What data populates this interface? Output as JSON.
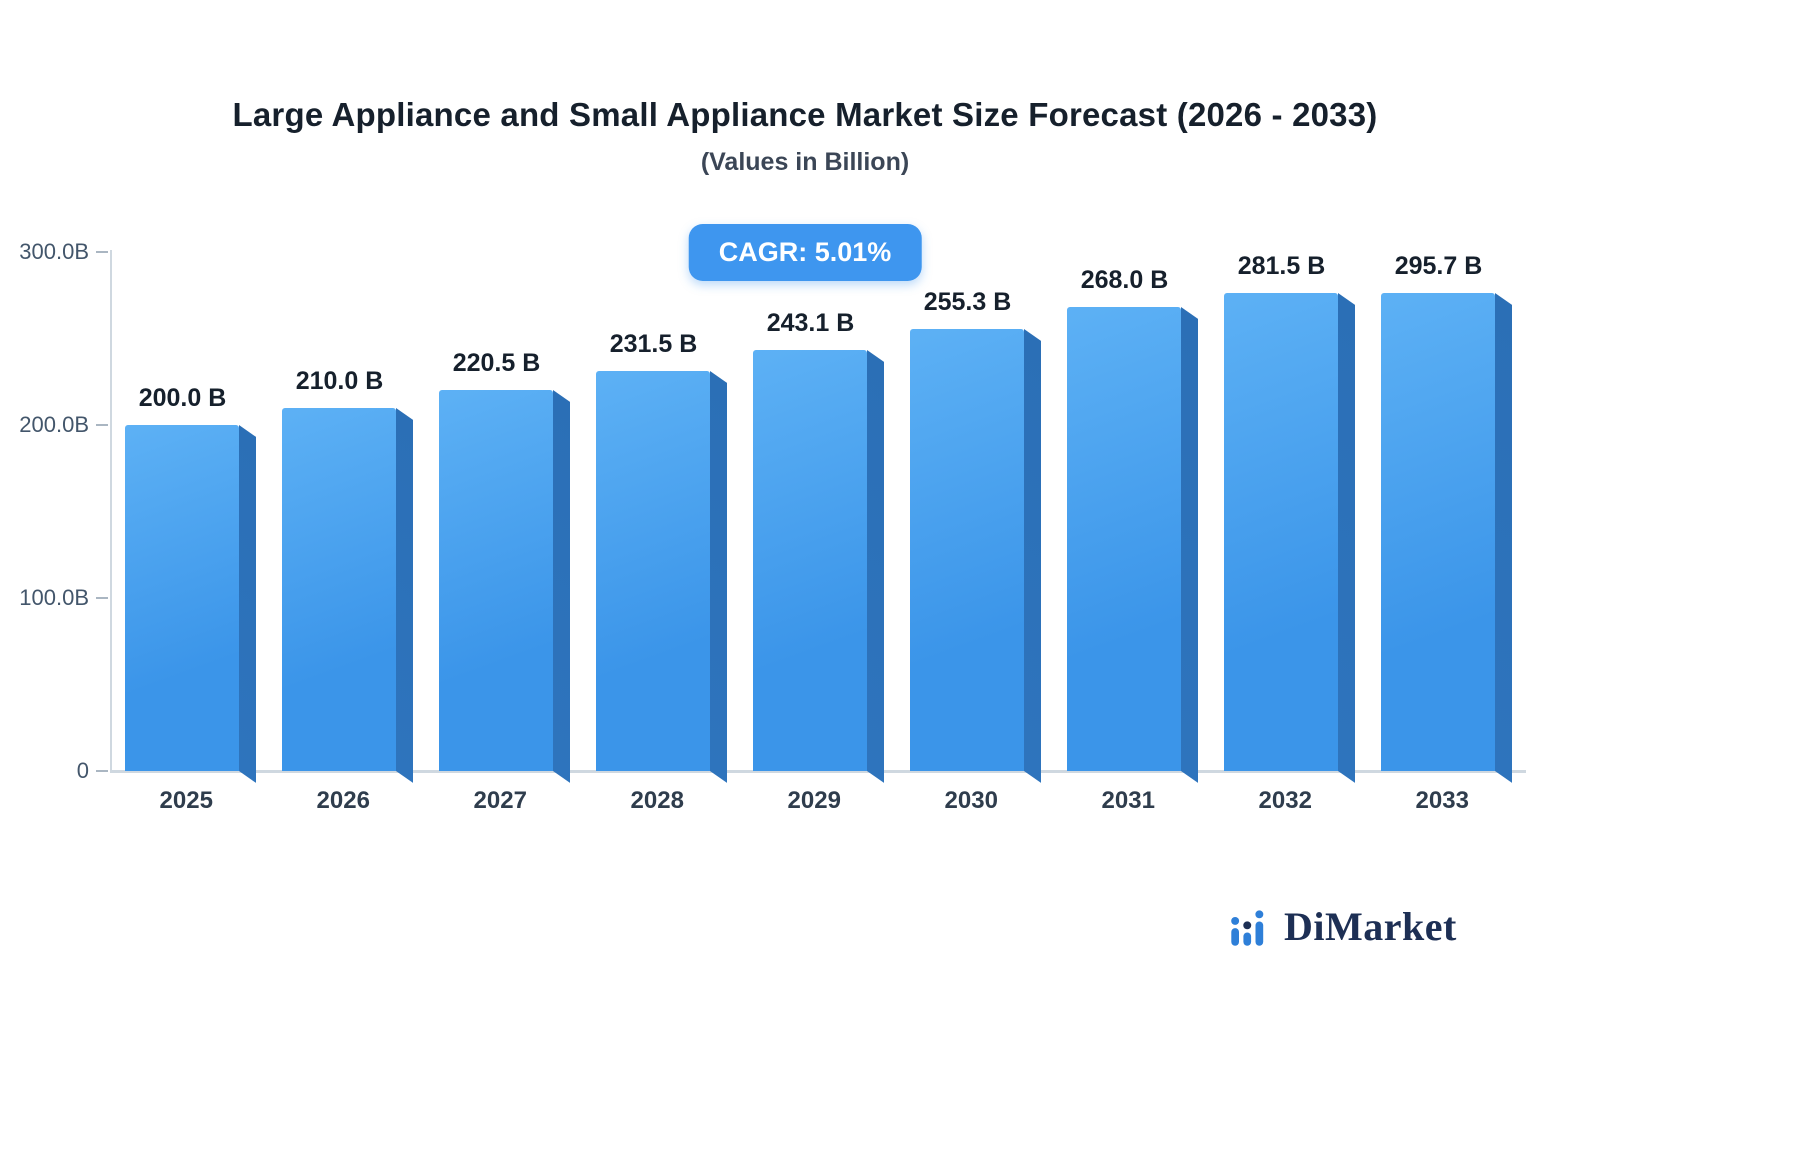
{
  "header": {
    "title": "Large Appliance and Small Appliance Market Size Forecast (2026 - 2033)",
    "subtitle": "(Values in Billion)"
  },
  "badge": {
    "label": "CAGR: 5.01%"
  },
  "chart_data": {
    "type": "bar",
    "title": "Large Appliance and Small Appliance Market Size Forecast (2026 - 2033)",
    "subtitle": "(Values in Billion)",
    "categories": [
      "2025",
      "2026",
      "2027",
      "2028",
      "2029",
      "2030",
      "2031",
      "2032",
      "2033"
    ],
    "values": [
      200.0,
      210.0,
      220.5,
      231.5,
      243.1,
      255.3,
      268.0,
      281.5,
      295.7
    ],
    "value_labels": [
      "200.0 B",
      "210.0 B",
      "220.5 B",
      "231.5 B",
      "243.1 B",
      "255.3 B",
      "268.0 B",
      "281.5 B",
      "295.7 B"
    ],
    "cagr": "CAGR: 5.01%",
    "xlabel": "",
    "ylabel": "",
    "ylim": [
      0,
      300
    ],
    "yticks": [
      {
        "value": 300,
        "label": "300.0B"
      },
      {
        "value": 200,
        "label": "200.0B"
      },
      {
        "value": 100,
        "label": "100.0B"
      },
      {
        "value": 0,
        "label": "0"
      }
    ],
    "grid": false,
    "legend": "none"
  },
  "logo": {
    "name": "DiMarket"
  },
  "colors": {
    "bar_front_top": "#5db1f5",
    "bar_front_bottom": "#3b95e9",
    "bar_side": "#2b6fb6",
    "badge_bg": "#3e96ef",
    "axis": "#cfd8e0",
    "logo_blue": "#2e7fd8",
    "logo_navy": "#1d2f54"
  }
}
